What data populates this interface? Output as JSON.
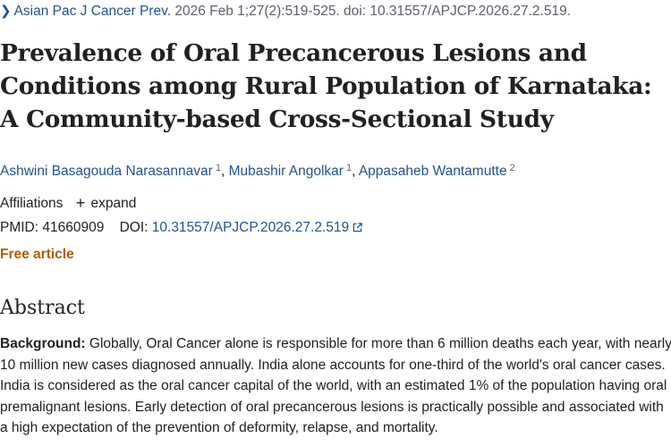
{
  "citation": {
    "journal": "Asian Pac J Cancer Prev.",
    "details": "2026 Feb 1;27(2):519-525. doi: 10.31557/APJCP.2026.27.2.519."
  },
  "title": "Prevalence of Oral Precancerous Lesions and Conditions among Rural Population of Karnataka: A Community-based Cross-Sectional Study",
  "authors": [
    {
      "name": "Ashwini Basagouda Narasannavar",
      "affiliation": "1"
    },
    {
      "name": "Mubashir Angolkar",
      "affiliation": "1"
    },
    {
      "name": "Appasaheb Wantamutte",
      "affiliation": "2"
    }
  ],
  "affiliations": {
    "label": "Affiliations",
    "expand_label": "expand"
  },
  "identifiers": {
    "pmid_label": "PMID:",
    "pmid": "41660909",
    "doi_label": "DOI:",
    "doi": "10.31557/APJCP.2026.27.2.519"
  },
  "free_article_label": "Free article",
  "abstract": {
    "heading": "Abstract",
    "background_label": "Background:",
    "background_text": "Globally, Oral Cancer alone is responsible for more than 6 million deaths each year, with nearly 10 million new cases diagnosed annually. India alone accounts for one-third of the world's oral cancer cases. India is considered as the oral cancer capital of the world, with an estimated 1% of the population having oral premalignant lesions. Early detection of oral precancerous lesions is practically possible and associated with a high expectation of the prevention of deformity, relapse, and mortality."
  },
  "icons": {
    "chevron": "chevron-right-icon",
    "plus": "plus-icon",
    "external_link": "external-link-icon"
  },
  "colors": {
    "link": "#205493",
    "free_article": "#b35c00",
    "text": "#212121"
  }
}
